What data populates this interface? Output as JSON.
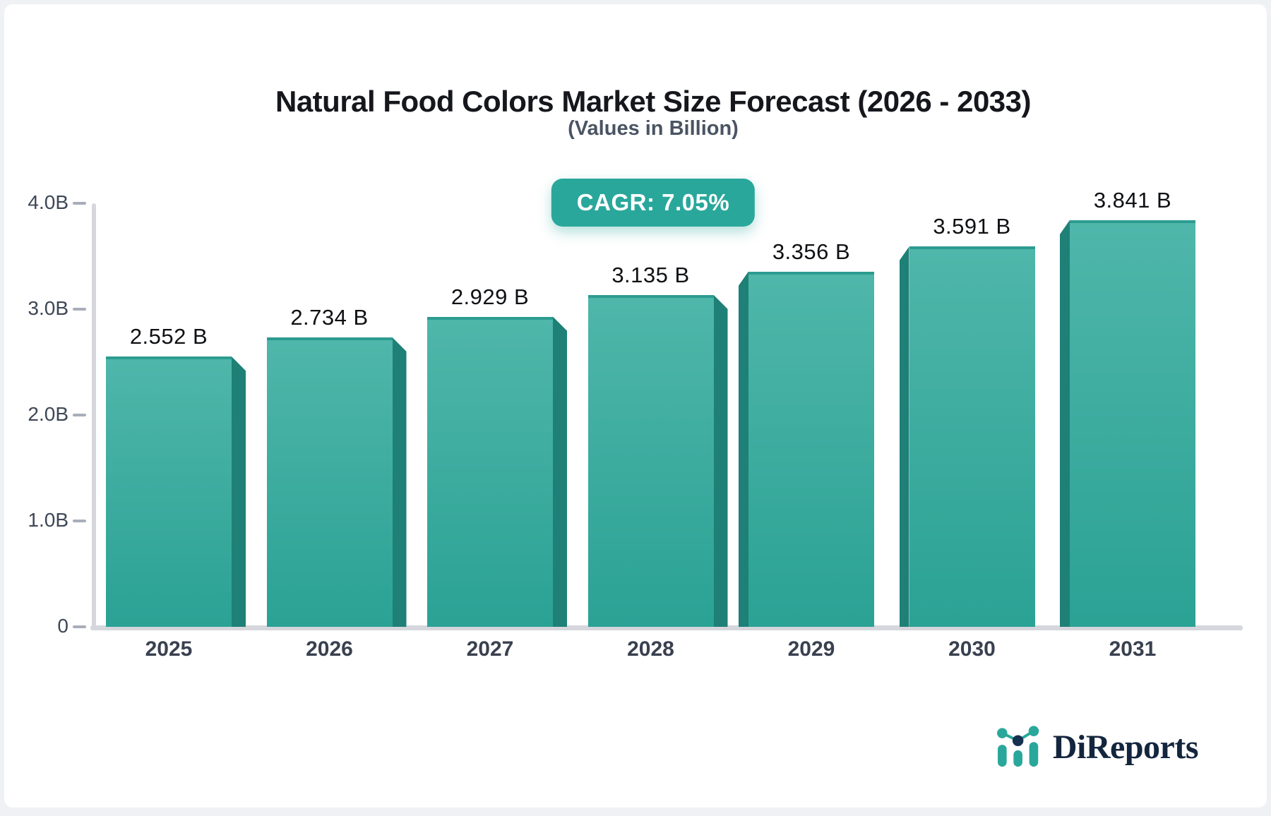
{
  "page": {
    "background": "#eff1f4",
    "card_background": "#ffffff"
  },
  "chart_data": {
    "type": "bar",
    "title": "Natural Food Colors Market Size Forecast (2026 - 2033)",
    "subtitle": "(Values in Billion)",
    "cagr_label": "CAGR: 7.05%",
    "categories": [
      "2025",
      "2026",
      "2027",
      "2028",
      "2029",
      "2030",
      "2031"
    ],
    "values": [
      2.552,
      2.734,
      2.929,
      3.135,
      3.356,
      3.591,
      3.841
    ],
    "value_labels": [
      "2.552 B",
      "2.734 B",
      "2.929 B",
      "3.135 B",
      "3.356 B",
      "3.591 B",
      "3.841 B"
    ],
    "unit": "Billion",
    "xlabel": "",
    "ylabel": "",
    "ylim": [
      0,
      4
    ],
    "yticks": [
      {
        "value": 0,
        "label": "0"
      },
      {
        "value": 1,
        "label": "1.0B"
      },
      {
        "value": 2,
        "label": "2.0B"
      },
      {
        "value": 3,
        "label": "3.0B"
      },
      {
        "value": 4,
        "label": "4.0B"
      }
    ],
    "grid": false,
    "legend": false,
    "bar_3d_bevel_sides": [
      "right",
      "right",
      "right",
      "right",
      "left",
      "left",
      "left"
    ]
  },
  "colors": {
    "accent": "#2aa79b",
    "bar-face-top": "#4fb6aa",
    "bar-face-bottom": "#2aa294",
    "bar-side": "#1e8076",
    "bar-top-border": "#2d9c90",
    "axis-line": "#d5d7dc",
    "tick-dash": "#a8aeb9",
    "axis-label": "#3e4756",
    "x-label": "#39404f",
    "value-label": "#0e1013",
    "title": "#15171c",
    "subtitle": "#4a5462",
    "logo-navy": "#14263e"
  },
  "logo": {
    "text": "DiReports"
  }
}
